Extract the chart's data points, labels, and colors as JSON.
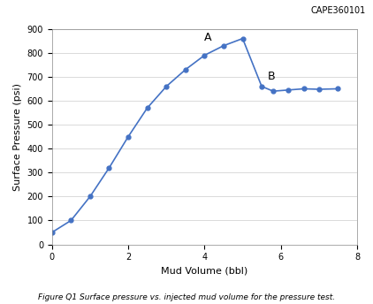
{
  "x_data": [
    0,
    0.5,
    1.0,
    1.5,
    2.0,
    2.5,
    3.0,
    3.5,
    4.0,
    4.5,
    5.0,
    5.5,
    5.8,
    6.2,
    6.6,
    7.0,
    7.5
  ],
  "y_data": [
    50,
    100,
    200,
    320,
    450,
    570,
    660,
    730,
    790,
    830,
    860,
    660,
    640,
    645,
    650,
    648,
    650
  ],
  "point_A_x": 4.5,
  "point_A_y": 830,
  "point_B_x": 5.5,
  "point_B_y": 660,
  "xlabel": "Mud Volume (bbl)",
  "ylabel": "Surface Pressure (psi)",
  "xlim": [
    0,
    8
  ],
  "ylim": [
    0,
    900
  ],
  "xticks": [
    0,
    2,
    4,
    6,
    8
  ],
  "yticks": [
    0,
    100,
    200,
    300,
    400,
    500,
    600,
    700,
    800,
    900
  ],
  "line_color": "#4472C4",
  "marker_color": "#4472C4",
  "background_color": "#ffffff",
  "grid_color": "#cccccc",
  "title": "Figure Q1 Surface pressure vs. injected mud volume for the pressure test.",
  "header": "CAPE360101",
  "fig_width": 4.22,
  "fig_height": 3.44
}
